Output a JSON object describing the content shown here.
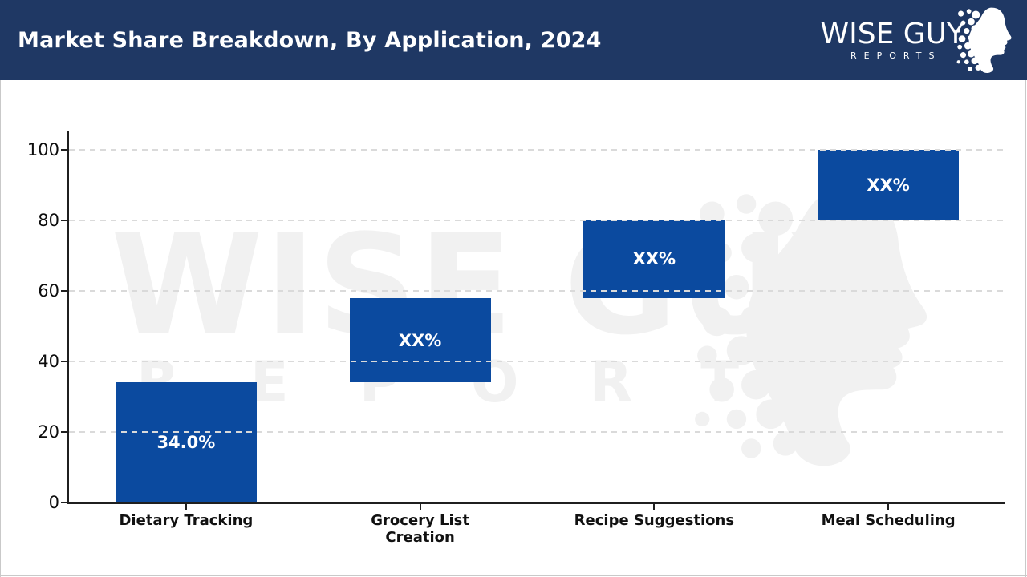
{
  "header": {
    "title": "Market Share Breakdown, By Application, 2024",
    "logo": {
      "line1": "WISE GUY",
      "line2": "REPORTS"
    }
  },
  "watermark": {
    "line1": "WISE GUY",
    "line2": "REPORTS"
  },
  "chart_data": {
    "type": "bar",
    "subtype": "floating-waterfall",
    "title": "Market Share Breakdown, By Application, 2024",
    "xlabel": "",
    "ylabel": "",
    "ylim": [
      0,
      100
    ],
    "yticks": [
      0,
      20,
      40,
      60,
      80,
      100
    ],
    "grid": "horizontal-dashed",
    "legend": "none",
    "categories": [
      "Dietary Tracking",
      "Grocery List Creation",
      "Recipe Suggestions",
      "Meal Scheduling"
    ],
    "category_label_lines": [
      [
        "Dietary Tracking"
      ],
      [
        "Grocery List",
        "Creation"
      ],
      [
        "Recipe Suggestions"
      ],
      [
        "Meal Scheduling"
      ]
    ],
    "bars": [
      {
        "category": "Dietary Tracking",
        "start": 0,
        "end": 34,
        "label": "34.0%"
      },
      {
        "category": "Grocery List Creation",
        "start": 34,
        "end": 58,
        "label": "XX%"
      },
      {
        "category": "Recipe Suggestions",
        "start": 58,
        "end": 80,
        "label": "XX%"
      },
      {
        "category": "Meal Scheduling",
        "start": 80,
        "end": 100,
        "label": "XX%"
      }
    ]
  },
  "colors": {
    "header_bg": "#1F3864",
    "bar": "#0B4A9F",
    "bar_label": "#ffffff",
    "grid": "#dadada",
    "axis": "#1f1f1f",
    "tick_text": "#0d0d0d",
    "watermark": "#f1f1f1",
    "page_border": "#c9c9c9"
  }
}
